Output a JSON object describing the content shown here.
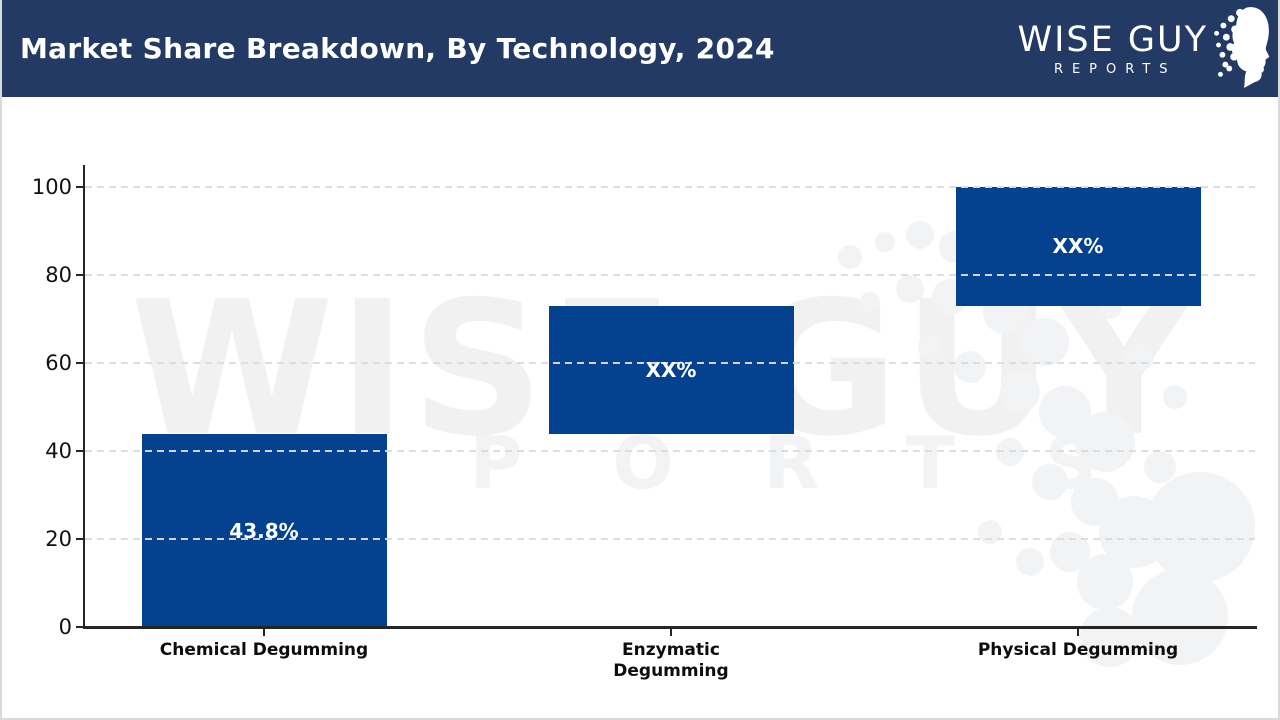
{
  "header": {
    "title": "Market Share Breakdown, By Technology, 2024",
    "background_color": "#223a64",
    "title_color": "#ffffff"
  },
  "logo": {
    "name": "Wise Guy Reports",
    "line1": "WISE GUY",
    "line2": "REPORTS"
  },
  "watermark": {
    "line1": "WISE GUY",
    "line2": "REPORTS"
  },
  "chart_data": {
    "type": "bar",
    "subtype": "stacked-waterfall",
    "title": "Market Share Breakdown, By Technology, 2024",
    "categories": [
      "Chemical Degumming",
      "Enzymatic\nDegumming",
      "Physical Degumming"
    ],
    "segments": [
      {
        "category": "Chemical Degumming",
        "start": 0,
        "end": 43.8,
        "value_label": "43.8%"
      },
      {
        "category": "Enzymatic Degumming",
        "start": 43.8,
        "end": 73,
        "value_label": "XX%"
      },
      {
        "category": "Physical Degumming",
        "start": 73,
        "end": 100,
        "value_label": "XX%"
      }
    ],
    "ylim": [
      0,
      100
    ],
    "yticks": [
      0,
      20,
      40,
      60,
      80,
      100
    ],
    "grid": "horizontal-dashed",
    "legend": "none",
    "bar_color": "#04418f",
    "bar_label_color": "#ffffff",
    "axis_color": "#262626",
    "tick_label_color": "#111111"
  }
}
